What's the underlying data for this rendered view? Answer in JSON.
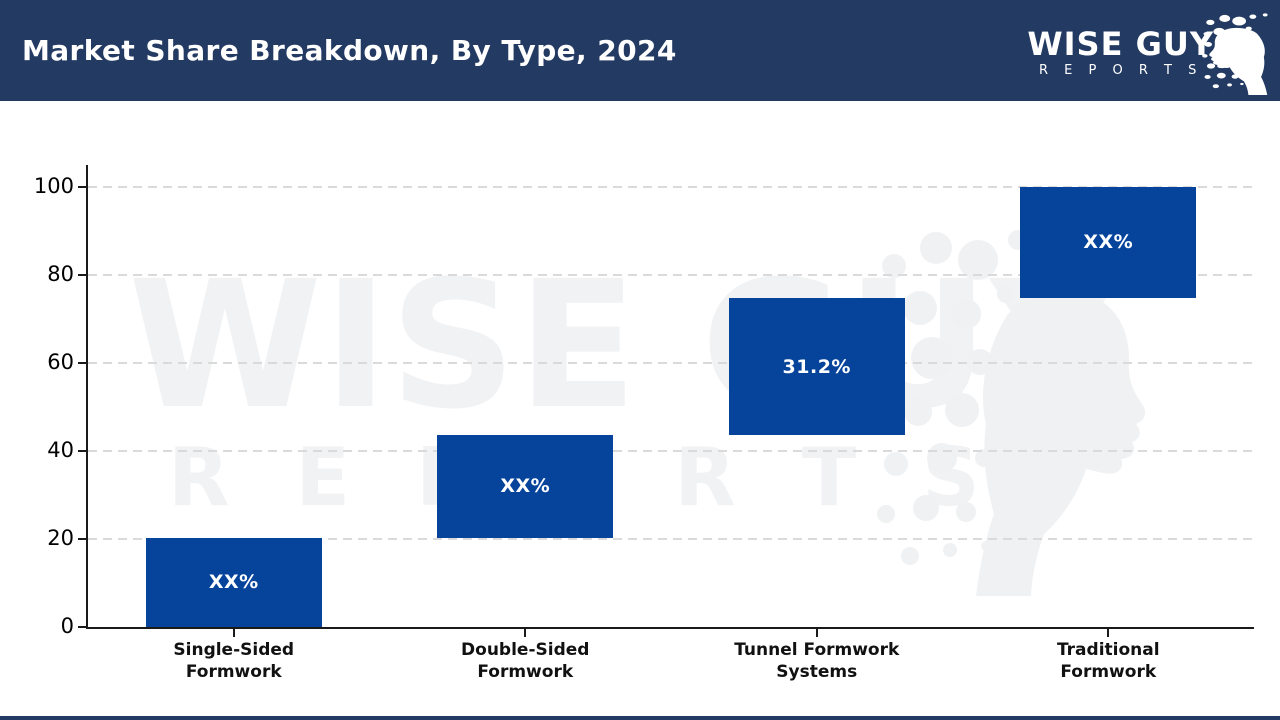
{
  "header": {
    "title": "Market Share Breakdown, By Type, 2024",
    "logo": {
      "line1": "WISE GUY",
      "line2": "R E P O R T S"
    }
  },
  "watermark": {
    "line1": "WISE GUY",
    "line2": "R E P O R T S"
  },
  "icons": {
    "logo_face": "face-profile-dots",
    "watermark_face": "face-profile-dots"
  },
  "colors": {
    "header_bg": "#233A63",
    "bar": "#06449C",
    "grid": "#DADADA",
    "axis": "#1A1A1A",
    "watermark": "#F1F2F4",
    "watermark_face": "#EFF1F3",
    "bar_label": "#FFFFFF",
    "title": "#FFFFFF"
  },
  "chart_data": {
    "type": "bar",
    "subtype": "floating-waterfall",
    "title": "Market Share Breakdown, By Type, 2024",
    "categories": [
      "Single-Sided Formwork",
      "Double-Sided Formwork",
      "Tunnel Formwork Systems",
      "Traditional Formwork"
    ],
    "category_label_lines": [
      [
        "Single-Sided",
        "Formwork"
      ],
      [
        "Double-Sided",
        "Formwork"
      ],
      [
        "Tunnel Formwork",
        "Systems"
      ],
      [
        "Traditional",
        "Formwork"
      ]
    ],
    "series": [
      {
        "name": "Single-Sided Formwork",
        "start": 0,
        "end": 20.3,
        "label": "XX%"
      },
      {
        "name": "Double-Sided Formwork",
        "start": 20.3,
        "end": 43.6,
        "label": "XX%"
      },
      {
        "name": "Tunnel Formwork Systems",
        "start": 43.6,
        "end": 74.8,
        "label": "31.2%"
      },
      {
        "name": "Traditional Formwork",
        "start": 74.8,
        "end": 100,
        "label": "XX%"
      }
    ],
    "xlabel": "",
    "ylabel": "",
    "ylim": [
      0,
      100
    ],
    "yticks": [
      0,
      20,
      40,
      60,
      80,
      100
    ],
    "grid": "dashed-horizontal",
    "legend": "none"
  }
}
